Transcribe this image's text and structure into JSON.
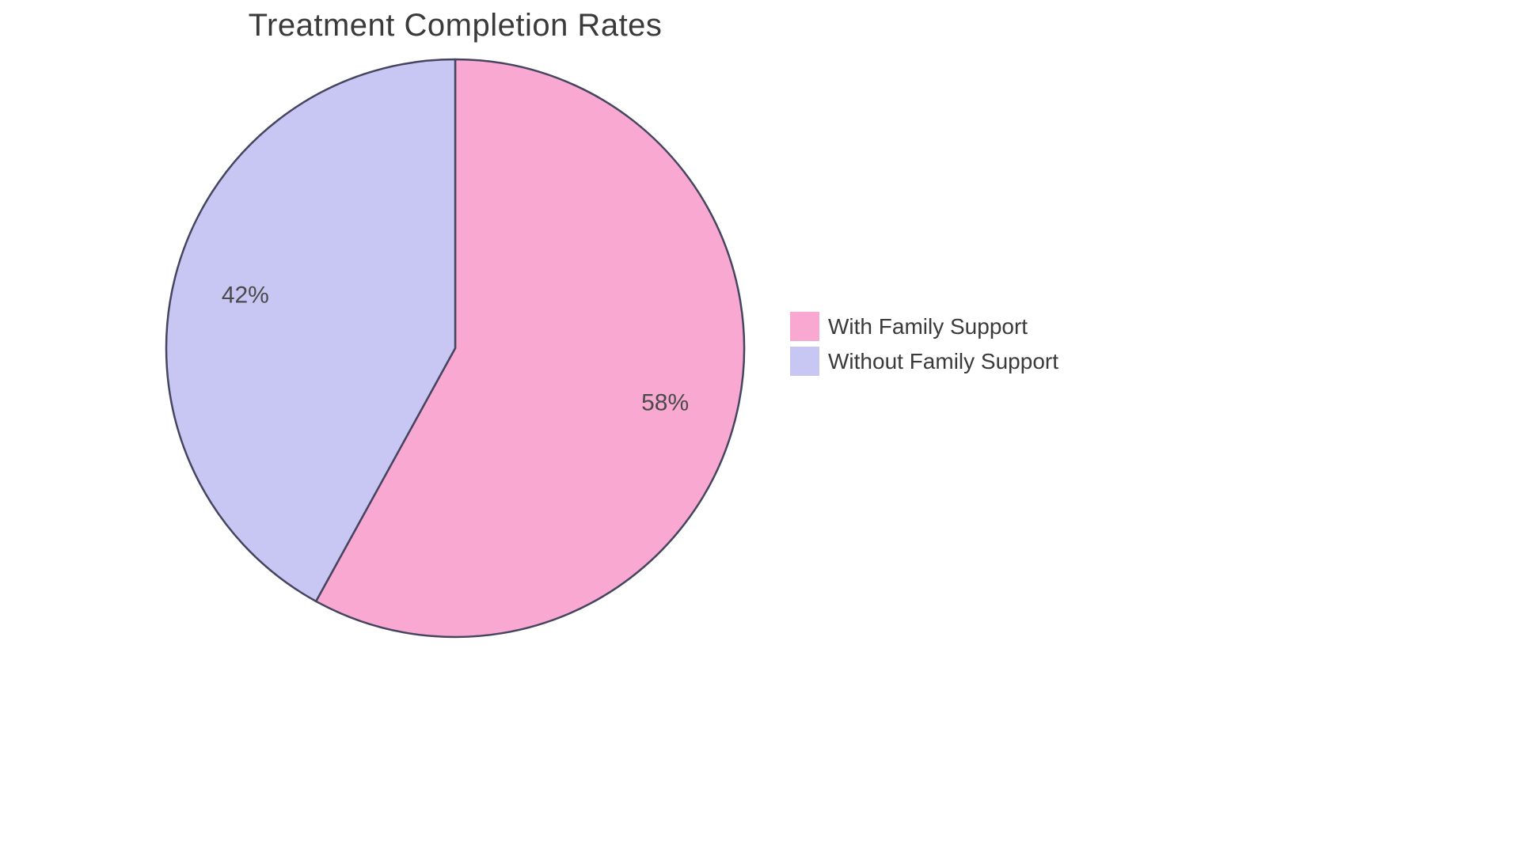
{
  "chart_data": {
    "type": "pie",
    "title": "Treatment Completion Rates",
    "slices": [
      {
        "label": "With Family Support",
        "value": 58,
        "display": "58%",
        "color": "#F9A8D2"
      },
      {
        "label": "Without Family Support",
        "value": 42,
        "display": "42%",
        "color": "#C8C7F4"
      }
    ],
    "start_angle_deg": 0,
    "direction": "clockwise",
    "legend_position": "right",
    "stroke_color": "#454560",
    "label_color": "#4a4a4a",
    "title_color": "#3a3a3a",
    "background_color": "#ffffff"
  }
}
